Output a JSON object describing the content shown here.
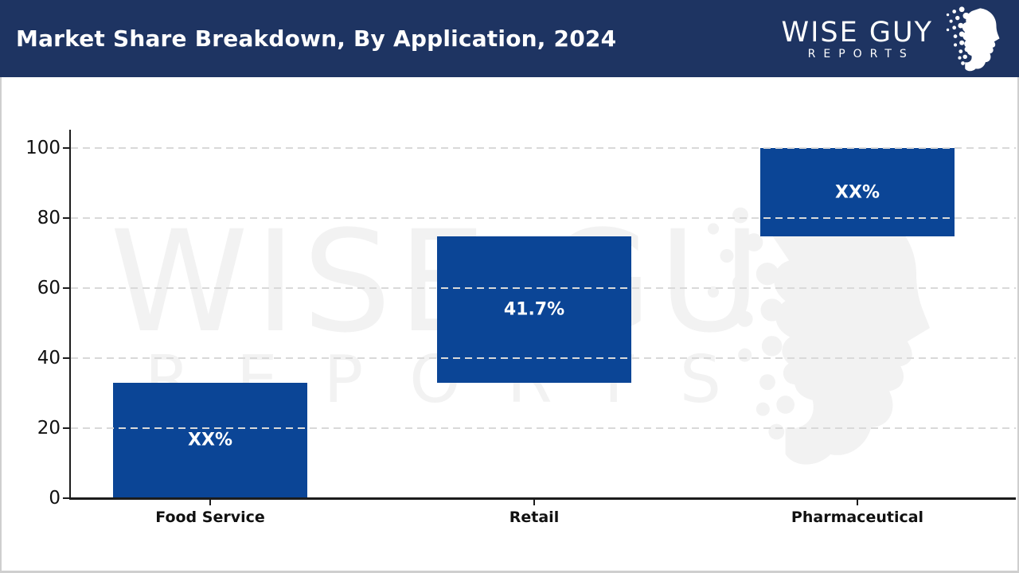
{
  "page": {
    "background": "#ffffff",
    "frame_color": "#cfcfcf"
  },
  "header": {
    "background": "#1e3462",
    "title": "Market Share Breakdown, By Application, 2024",
    "logo": {
      "line1": "WISE GUY",
      "line2": "REPORTS",
      "face_icon": "dotted-head-profile"
    }
  },
  "watermark": {
    "line1": "WISE GUY",
    "line2": "REPORTS",
    "face_icon": "dotted-head-profile",
    "color": "#f2f2f2"
  },
  "chart_data": {
    "type": "bar",
    "subtype": "waterfall-floating-bars",
    "title": "Market Share Breakdown, By Application, 2024",
    "categories": [
      "Food Service",
      "Retail",
      "Pharmaceutical"
    ],
    "bars": [
      {
        "category": "Food Service",
        "start": 0,
        "end": 33,
        "label": "XX%"
      },
      {
        "category": "Retail",
        "start": 33,
        "end": 74.7,
        "label": "41.7%"
      },
      {
        "category": "Pharmaceutical",
        "start": 74.7,
        "end": 100,
        "label": "XX%"
      }
    ],
    "xlabel": "",
    "ylabel": "",
    "ylim": [
      0,
      105.5
    ],
    "yticks": [
      0,
      20,
      40,
      60,
      80,
      100
    ],
    "grid": "horizontal dashed lines drawn over bars",
    "legend": "none",
    "bar_color": "#0b4596",
    "bar_label_color": "#ffffff",
    "gridline_color": "#d9d9d9",
    "axis_color": "#1c1c1c"
  }
}
